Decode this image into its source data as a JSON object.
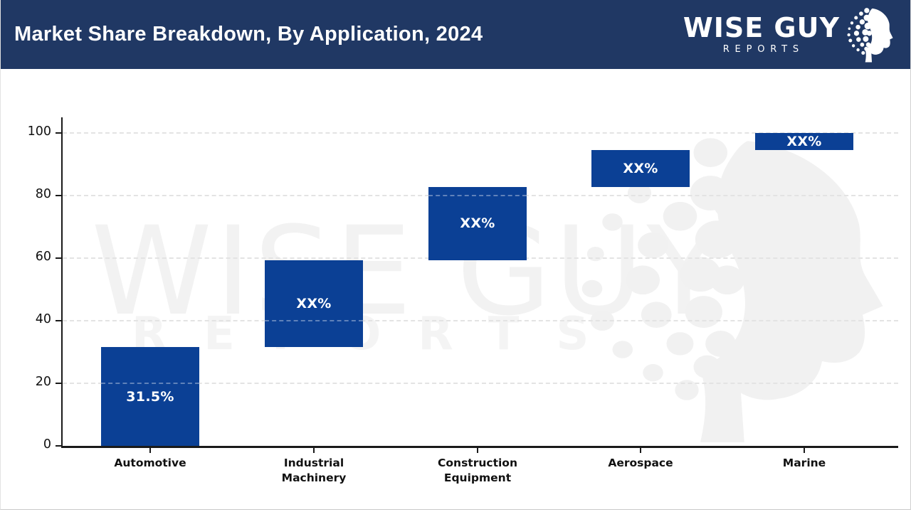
{
  "header": {
    "title": "Market Share Breakdown, By Application, 2024",
    "logo": {
      "wordmark": "WISE GUY",
      "subtext": "REPORTS"
    }
  },
  "watermark": {
    "wordmark": "WISE GUY",
    "subtext": "REPORTS"
  },
  "colors": {
    "header_bg": "#203864",
    "bar_blue": "#0b4095",
    "axis": "#1a1a1a",
    "gridline": "#e3e3e3",
    "watermark_gray": "#f1f1f1",
    "bar_label_text": "#ffffff"
  },
  "chart_data": {
    "type": "bar",
    "subtype": "waterfall",
    "title": "Market Share Breakdown, By Application, 2024",
    "unit": "%",
    "categories": [
      "Automotive",
      "Industrial Machinery",
      "Construction Equipment",
      "Aerospace",
      "Marine"
    ],
    "category_label_lines": [
      [
        "Automotive"
      ],
      [
        "Industrial",
        "Machinery"
      ],
      [
        "Construction",
        "Equipment"
      ],
      [
        "Aerospace"
      ],
      [
        "Marine"
      ]
    ],
    "segments": [
      {
        "name": "Automotive",
        "start": 0,
        "end": 31.5,
        "value": 31.5,
        "label": "31.5%"
      },
      {
        "name": "Industrial Machinery",
        "start": 31.5,
        "end": 59.3,
        "value": 27.8,
        "label": "XX%"
      },
      {
        "name": "Construction Equipment",
        "start": 59.3,
        "end": 82.8,
        "value": 23.5,
        "label": "XX%"
      },
      {
        "name": "Aerospace",
        "start": 82.8,
        "end": 94.6,
        "value": 11.8,
        "label": "XX%"
      },
      {
        "name": "Marine",
        "start": 94.6,
        "end": 100,
        "value": 5.4,
        "label": "XX%"
      }
    ],
    "yticks": [
      0,
      20,
      40,
      60,
      80,
      100
    ],
    "ylim": [
      0,
      105
    ],
    "grid": {
      "axis": "y",
      "style": "dashed",
      "color": "#e3e3e3"
    },
    "bar_color": "#0b4095",
    "legend": null
  }
}
